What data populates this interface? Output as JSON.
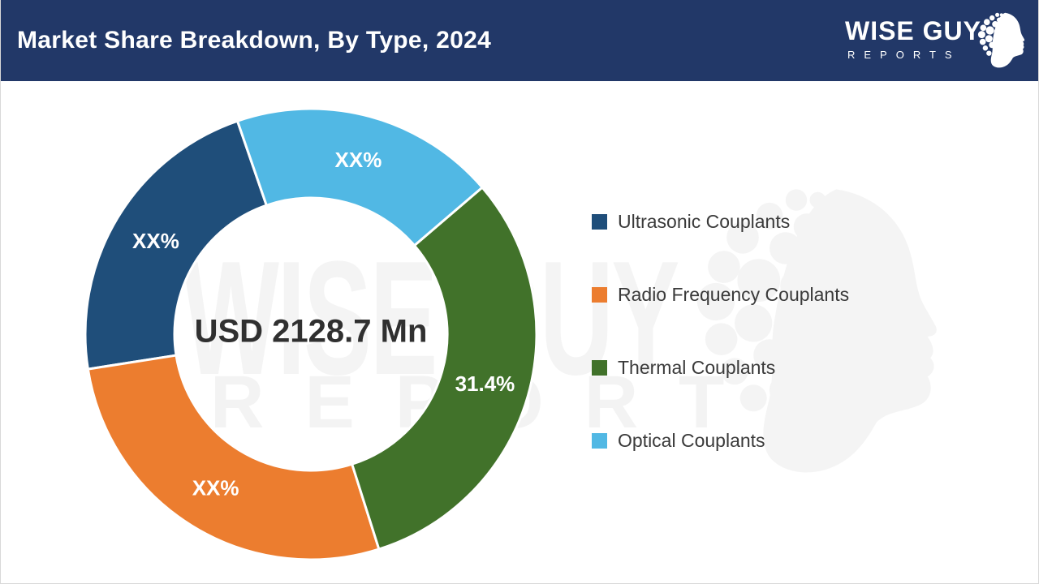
{
  "header": {
    "title": "Market Share Breakdown, By Type, 2024",
    "logo": {
      "name": "WISE GUY",
      "subtitle": "REPORTS"
    }
  },
  "watermark": {
    "wordmark": "WISE GUY",
    "subtitle": "REPORTS"
  },
  "chart_data": {
    "type": "pie",
    "subtype": "donut",
    "title": "Market Share Breakdown, By Type, 2024",
    "center_label": "USD 2128.7 Mn",
    "legend_position": "right",
    "segments": [
      {
        "name": "Ultrasonic Couplants",
        "label": "XX%",
        "value_pct": 22.2,
        "color": "#1F4E7A"
      },
      {
        "name": "Radio Frequency Couplants",
        "label": "XX%",
        "value_pct": 27.4,
        "color": "#EC7D2F"
      },
      {
        "name": "Thermal Couplants",
        "label": "31.4%",
        "value_pct": 31.4,
        "color": "#41722A"
      },
      {
        "name": "Optical Couplants",
        "label": "XX%",
        "value_pct": 19.0,
        "color": "#51B8E4"
      }
    ],
    "colors": {
      "header_background": "#223868",
      "title_text": "#ffffff",
      "center_text": "#303030",
      "legend_text": "#3a3a3a",
      "watermark": "#f4f4f4"
    }
  }
}
